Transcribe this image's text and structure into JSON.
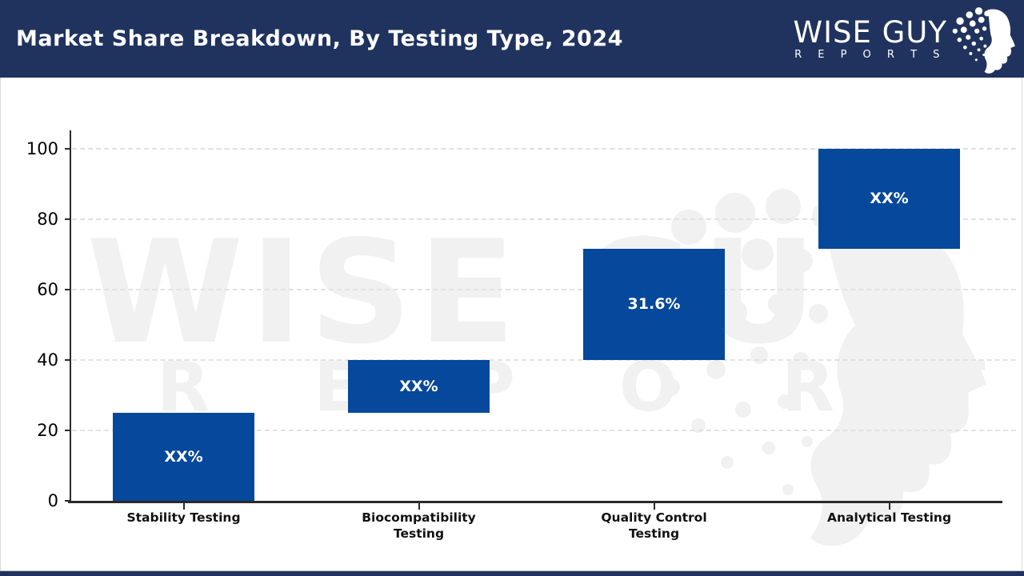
{
  "header": {
    "title": "Market Share Breakdown, By Testing Type, 2024",
    "logo": {
      "line1": "WISE GUY",
      "line2": "R E P O R T S"
    }
  },
  "watermark": {
    "line1": "WISE GUY",
    "line2": "R E P O R T S"
  },
  "colors": {
    "header_bg": "#20335e",
    "footer_bg": "#20335e",
    "bar": "#05489c",
    "bar_label": "#ffffff",
    "grid": "#e2e2e2",
    "axis": "#2b2b2b",
    "watermark": "#f1f1f1",
    "title_text": "#ffffff"
  },
  "chart_data": {
    "type": "bar",
    "subtype": "floating-waterfall",
    "title": "Market Share Breakdown, By Testing Type, 2024",
    "categories": [
      "Stability Testing",
      "Biocompatibility Testing",
      "Quality Control Testing",
      "Analytical Testing"
    ],
    "category_lines": [
      [
        "Stability Testing"
      ],
      [
        "Biocompatibility",
        "Testing"
      ],
      [
        "Quality Control",
        "Testing"
      ],
      [
        "Analytical Testing"
      ]
    ],
    "segments": [
      {
        "category": "Stability Testing",
        "start": 0,
        "end": 25,
        "value": 25,
        "label": "XX%"
      },
      {
        "category": "Biocompatibility Testing",
        "start": 25,
        "end": 40,
        "value": 15,
        "label": "XX%"
      },
      {
        "category": "Quality Control Testing",
        "start": 40,
        "end": 71.6,
        "value": 31.6,
        "label": "31.6%"
      },
      {
        "category": "Analytical Testing",
        "start": 71.6,
        "end": 100,
        "value": 28.4,
        "label": "XX%"
      }
    ],
    "xlabel": "",
    "ylabel": "",
    "ylim": [
      0,
      105
    ],
    "yticks": [
      0,
      20,
      40,
      60,
      80,
      100
    ],
    "grid": "horizontal-dashed",
    "legend": "none"
  }
}
